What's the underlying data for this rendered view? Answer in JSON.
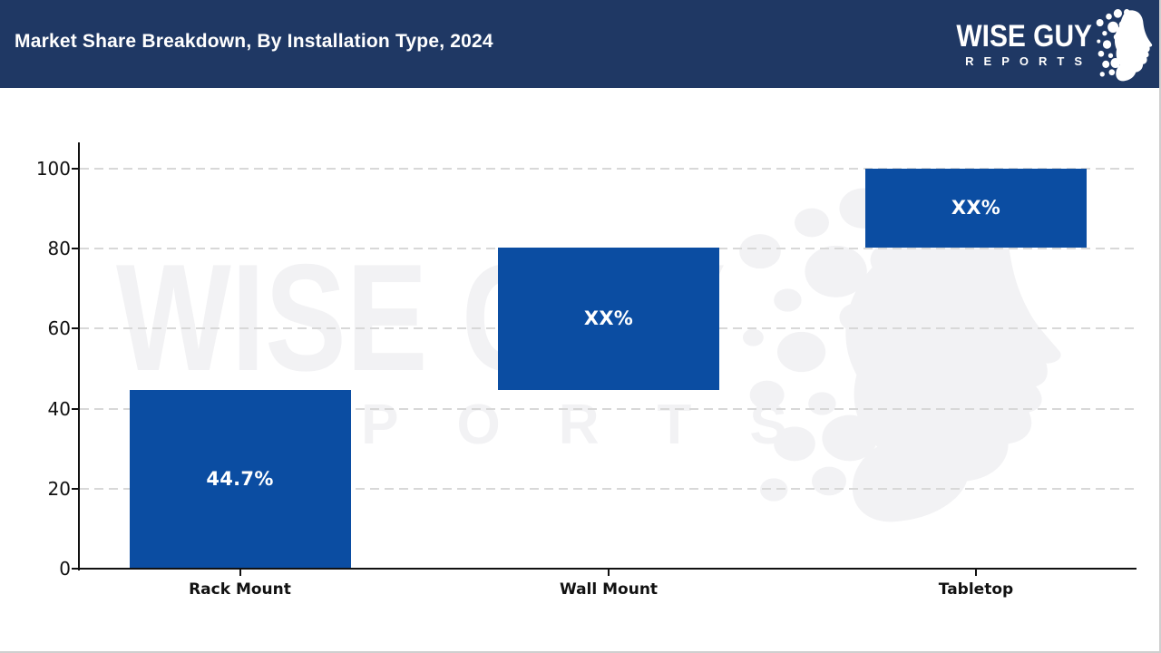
{
  "header": {
    "title": "Market Share Breakdown, By Installation Type, 2024",
    "bg_color": "#1F3864",
    "text_color": "#FFFFFF"
  },
  "logo": {
    "line1": "WISE GUY",
    "line2": "REPORTS",
    "icon": "dotted-head-profile"
  },
  "watermark": {
    "line1": "WISE GUY",
    "line2": "REPORTS",
    "icon": "dotted-head-profile",
    "color": "#F2F2F4"
  },
  "chart_data": {
    "type": "bar",
    "subtype": "waterfall",
    "title": "Market Share Breakdown, By Installation Type, 2024",
    "categories": [
      "Rack Mount",
      "Wall Mount",
      "Tabletop"
    ],
    "series": [
      {
        "name": "Market Share (%)",
        "segments": [
          {
            "category": "Rack Mount",
            "start": 0,
            "end": 44.7,
            "label": "44.7%"
          },
          {
            "category": "Wall Mount",
            "start": 44.7,
            "end": 80.3,
            "label": "XX%"
          },
          {
            "category": "Tabletop",
            "start": 80.3,
            "end": 100,
            "label": "XX%"
          }
        ]
      }
    ],
    "xlabel": "",
    "ylabel": "",
    "ylim": [
      0,
      100
    ],
    "yticks": [
      0,
      20,
      40,
      60,
      80,
      100
    ],
    "grid": "horizontal-dashed",
    "legend": "none",
    "bar_color": "#0B4DA2",
    "bar_label_color": "#FFFFFF",
    "axis_color": "#111111",
    "gridline_color": "#D8D8D8"
  }
}
